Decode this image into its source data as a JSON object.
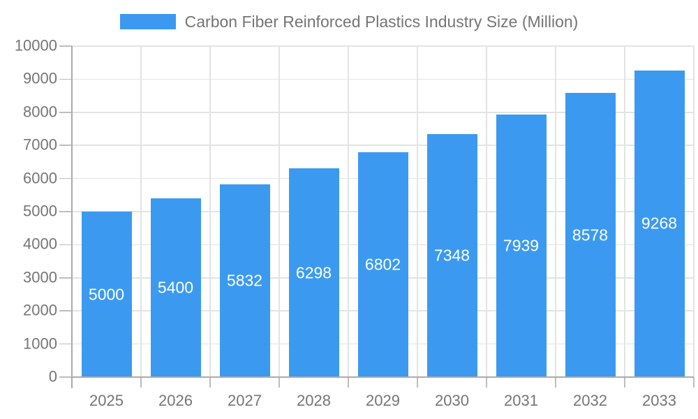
{
  "chart_data": {
    "type": "bar",
    "title": "Carbon Fiber Reinforced Plastics Industry Size (Million)",
    "categories": [
      "2025",
      "2026",
      "2027",
      "2028",
      "2029",
      "2030",
      "2031",
      "2032",
      "2033"
    ],
    "values": [
      5000,
      5400,
      5832,
      6298,
      6802,
      7348,
      7939,
      8578,
      9268
    ],
    "xlabel": "",
    "ylabel": "",
    "ylim": [
      0,
      10000
    ],
    "yticks": [
      0,
      1000,
      2000,
      3000,
      4000,
      5000,
      6000,
      7000,
      8000,
      9000,
      10000
    ],
    "grid": true,
    "legend_position": "top",
    "value_label_position": "inside-center",
    "colors": {
      "bar": "#3b9af0",
      "value_label": "#ffffff",
      "axis_text": "#757575",
      "grid_line": "#e3e3e3",
      "axis_line": "#aaaaaa",
      "tick": "#bdbdbd",
      "background": "#ffffff"
    }
  }
}
